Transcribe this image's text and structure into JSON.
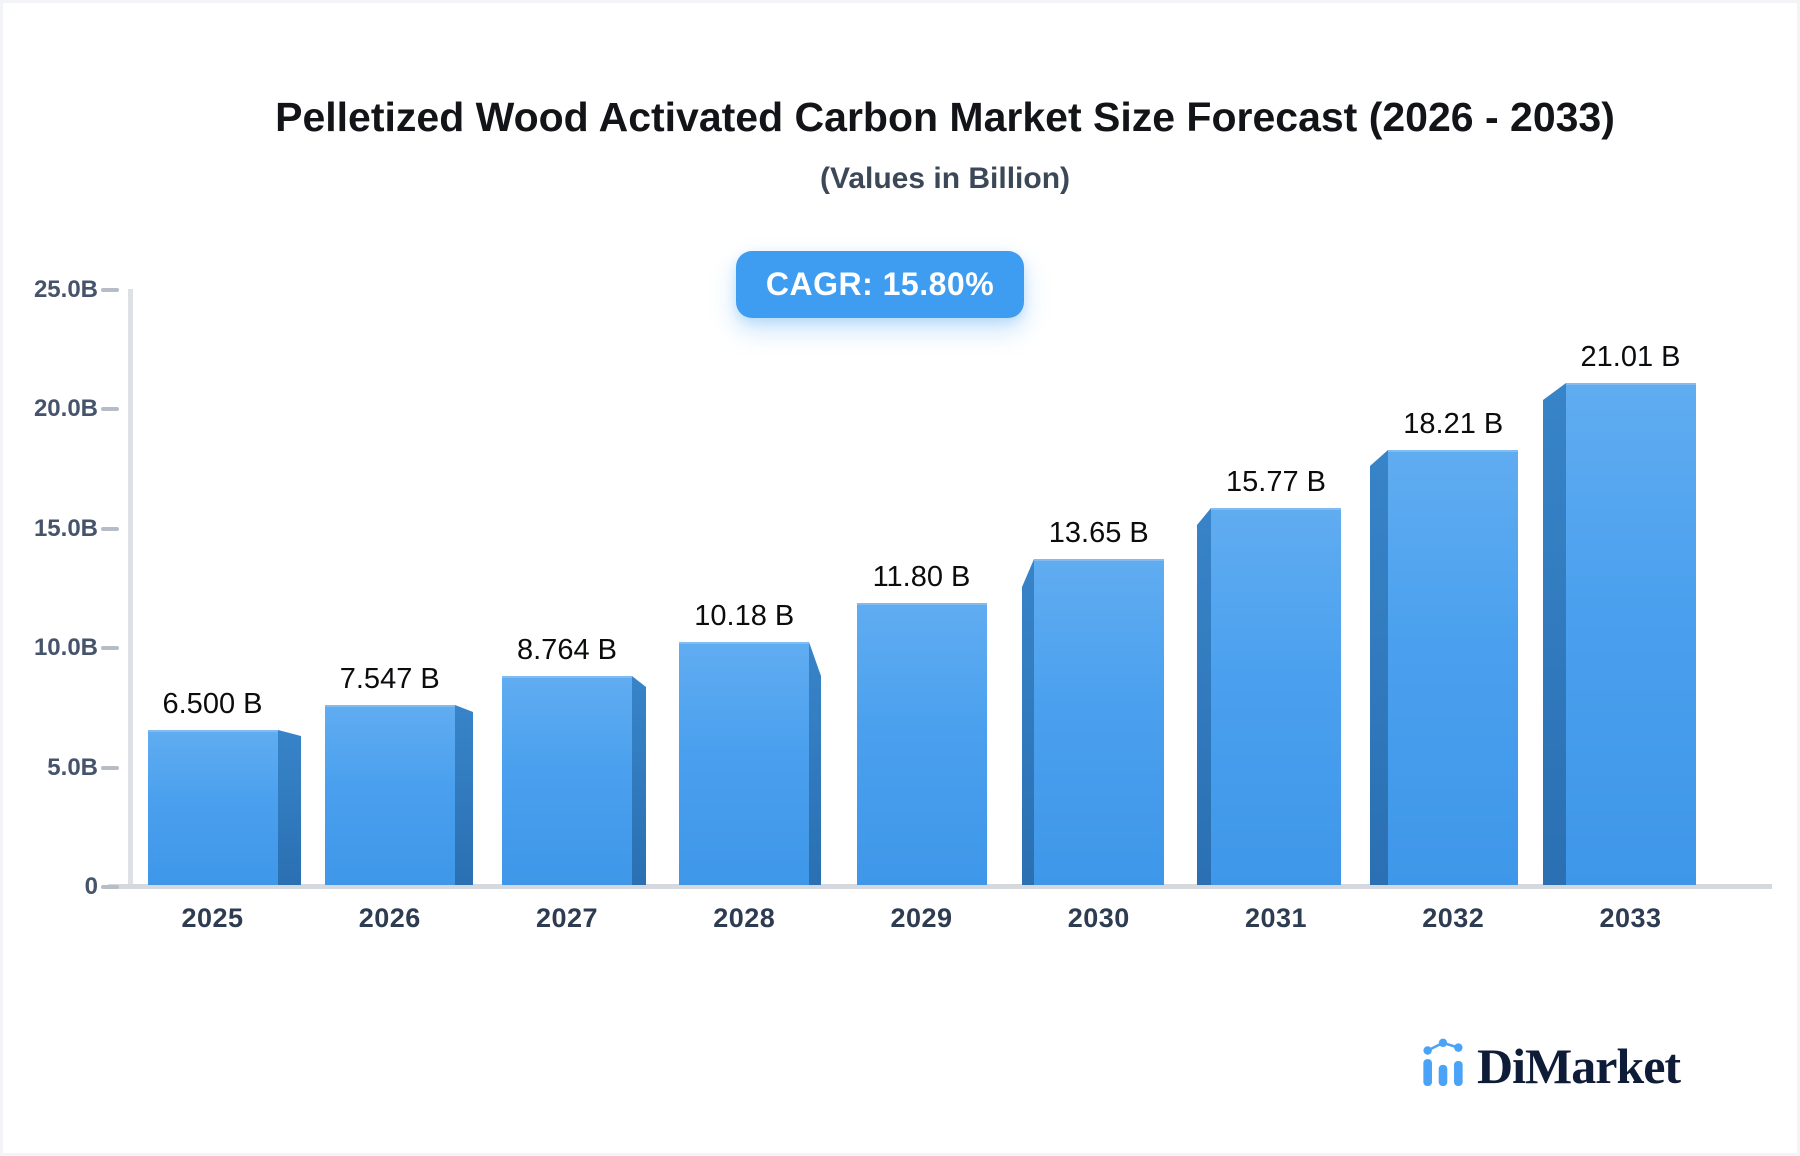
{
  "header": {
    "title": "Pelletized Wood Activated Carbon Market Size Forecast (2026 - 2033)",
    "subtitle": "(Values in Billion)",
    "cagr_badge": "CAGR: 15.80%"
  },
  "logo": {
    "text": "DiMarket",
    "icon": "bar-chart-sparkline-icon"
  },
  "colors": {
    "bar_face_top": "#60acf1",
    "bar_face_bottom": "#3f97e9",
    "bar_side": "#2f7cc0",
    "badge_background": "#3e9df1",
    "badge_text": "#ffffff",
    "title_text": "#121418",
    "subtitle_text": "#3c4858",
    "axis_line": "#dde0e5",
    "logo_navy": "#0f1c38",
    "logo_blue": "#4aa3f7"
  },
  "chart_data": {
    "type": "bar",
    "title": "Pelletized Wood Activated Carbon Market Size Forecast (2026 - 2033)",
    "subtitle": "(Values in Billion)",
    "annotation": "CAGR: 15.80%",
    "categories": [
      "2025",
      "2026",
      "2027",
      "2028",
      "2029",
      "2030",
      "2031",
      "2032",
      "2033"
    ],
    "values": [
      6.5,
      7.547,
      8.764,
      10.18,
      11.8,
      13.65,
      15.77,
      18.21,
      21.01
    ],
    "bar_labels": [
      "6.500 B",
      "7.547 B",
      "8.764 B",
      "10.18 B",
      "11.80 B",
      "13.65 B",
      "15.77 B",
      "18.21 B",
      "21.01 B"
    ],
    "unit": "Billion",
    "xlabel": "",
    "ylabel": "",
    "ylim": [
      0,
      25
    ],
    "grid": false,
    "legend": false,
    "y_ticks": [
      {
        "v": 25,
        "label": "25.0B"
      },
      {
        "v": 20,
        "label": "20.0B"
      },
      {
        "v": 15,
        "label": "15.0B"
      },
      {
        "v": 10,
        "label": "10.0B"
      },
      {
        "v": 5,
        "label": "5.0B"
      },
      {
        "v": 0,
        "label": "0"
      }
    ]
  }
}
